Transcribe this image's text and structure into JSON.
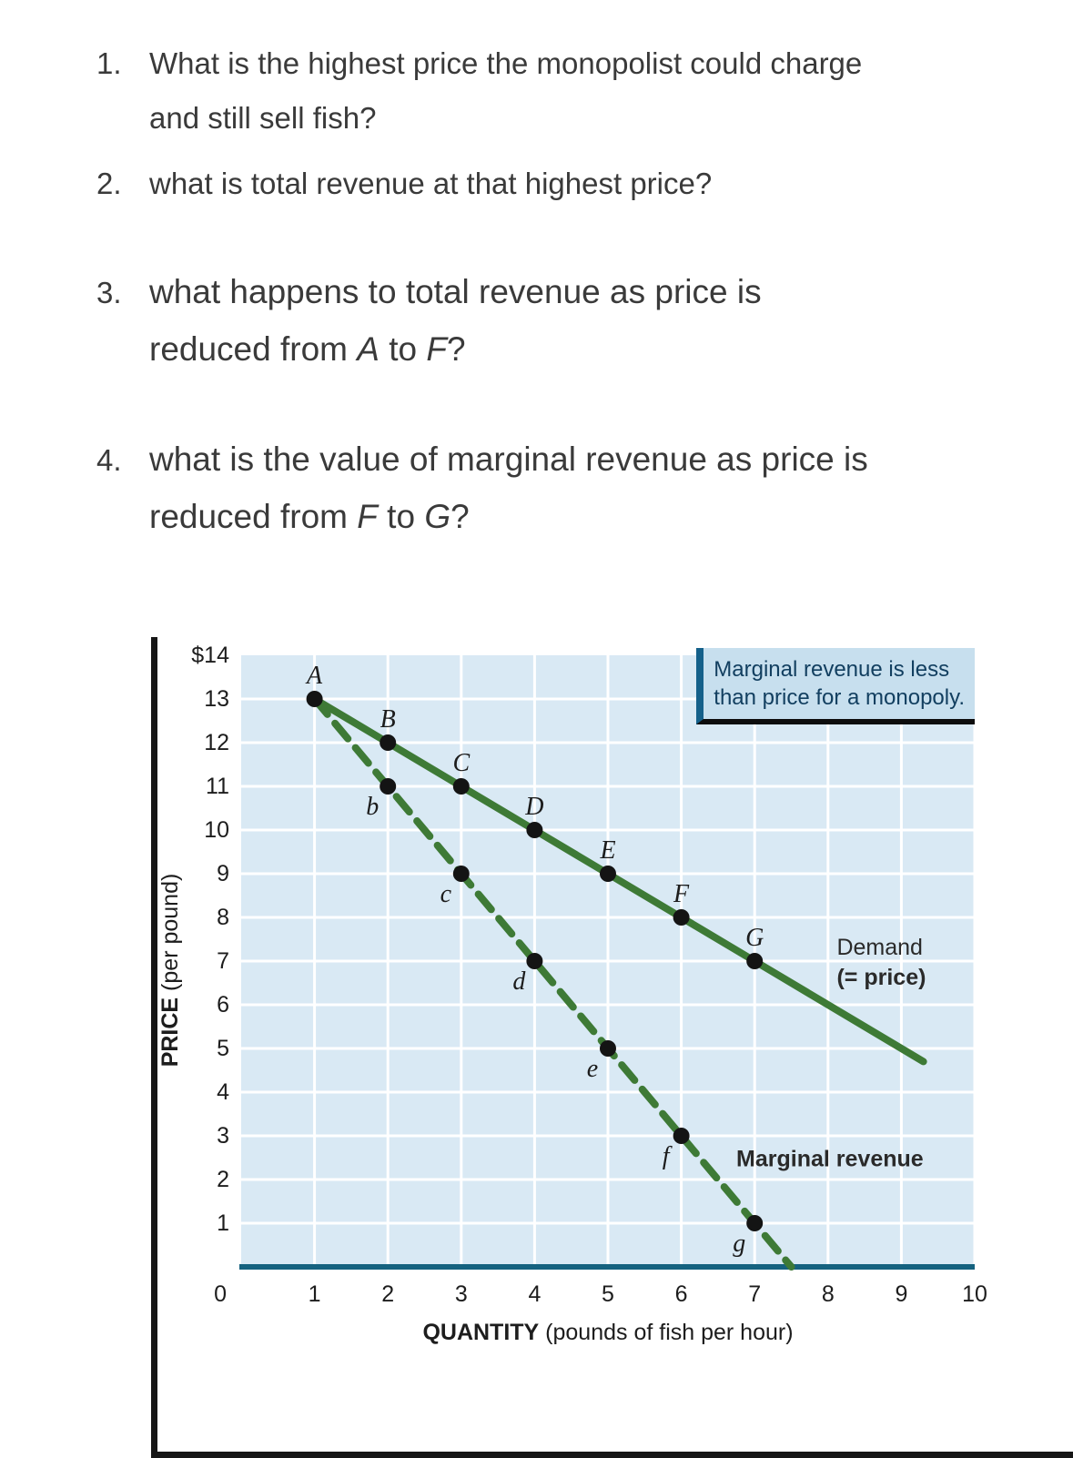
{
  "questions": [
    {
      "number": "1.",
      "segments": [
        {
          "t": "What is the highest price the monopolist could charge and still sell fish?",
          "i": false
        }
      ]
    },
    {
      "number": "2.",
      "segments": [
        {
          "t": "what is total revenue at that highest price?",
          "i": false
        }
      ]
    },
    {
      "number": "3.",
      "segments": [
        {
          "t": "what happens to total revenue as price is reduced from ",
          "i": false
        },
        {
          "t": "A",
          "i": true
        },
        {
          "t": " to ",
          "i": false
        },
        {
          "t": "F",
          "i": true
        },
        {
          "t": "?",
          "i": false
        }
      ]
    },
    {
      "number": "4.",
      "segments": [
        {
          "t": "what is the value of marginal revenue as price is reduced from ",
          "i": false
        },
        {
          "t": "F",
          "i": true
        },
        {
          "t": " to ",
          "i": false
        },
        {
          "t": "G",
          "i": true
        },
        {
          "t": "?",
          "i": false
        }
      ]
    }
  ],
  "figure": {
    "callout": {
      "line1": "Marginal revenue is less",
      "line2": "than price for a monopoly."
    }
  },
  "chart_data": {
    "type": "line",
    "title": "",
    "xlabel": "QUANTITY (pounds of fish per hour)",
    "xlabel_bold": "QUANTITY",
    "xlabel_rest": " (pounds of fish per hour)",
    "ylabel": "PRICE (per pound)",
    "ylabel_bold": "PRICE",
    "ylabel_rest": " (per pound)",
    "xlim": [
      0,
      10
    ],
    "ylim": [
      0,
      14
    ],
    "x_ticks": [
      "1",
      "2",
      "3",
      "4",
      "5",
      "6",
      "7",
      "8",
      "9",
      "10"
    ],
    "y_ticks": [
      "$14",
      "13",
      "12",
      "11",
      "10",
      "9",
      "8",
      "7",
      "6",
      "5",
      "4",
      "3",
      "2",
      "1"
    ],
    "origin_label": "0",
    "grid": true,
    "legend_position": "inline-annotations",
    "series": [
      {
        "name": "Demand (= price)",
        "style": "solid",
        "points": [
          [
            1,
            13
          ],
          [
            2,
            12
          ],
          [
            3,
            11
          ],
          [
            4,
            10
          ],
          [
            5,
            9
          ],
          [
            6,
            8
          ],
          [
            7,
            7
          ]
        ],
        "point_labels": [
          "A",
          "B",
          "C",
          "D",
          "E",
          "F",
          "G"
        ],
        "extend_to": [
          9.3,
          4.7
        ]
      },
      {
        "name": "Marginal revenue",
        "style": "dashed",
        "points": [
          [
            1,
            13
          ],
          [
            2,
            11
          ],
          [
            3,
            9
          ],
          [
            4,
            7
          ],
          [
            5,
            5
          ],
          [
            6,
            3
          ],
          [
            7,
            1
          ]
        ],
        "point_labels": [
          "",
          "b",
          "c",
          "d",
          "e",
          "f",
          "g"
        ],
        "extend_to": [
          7.5,
          0
        ]
      }
    ],
    "annotations": [
      {
        "x": 8.12,
        "y": 7.15,
        "lines": [
          {
            "text": "Demand",
            "bold": false
          },
          {
            "text": "(= price)",
            "bold": true
          }
        ]
      },
      {
        "x": 6.75,
        "y": 2.3,
        "lines": [
          {
            "text": "Marginal revenue",
            "bold": true
          }
        ]
      }
    ],
    "colors": {
      "line": "#3e7a36",
      "dot": "#141414",
      "plot_bg": "#d9e9f4",
      "grid": "#ffffff",
      "axis": "#15627f",
      "text": "#1d1d1d"
    }
  }
}
